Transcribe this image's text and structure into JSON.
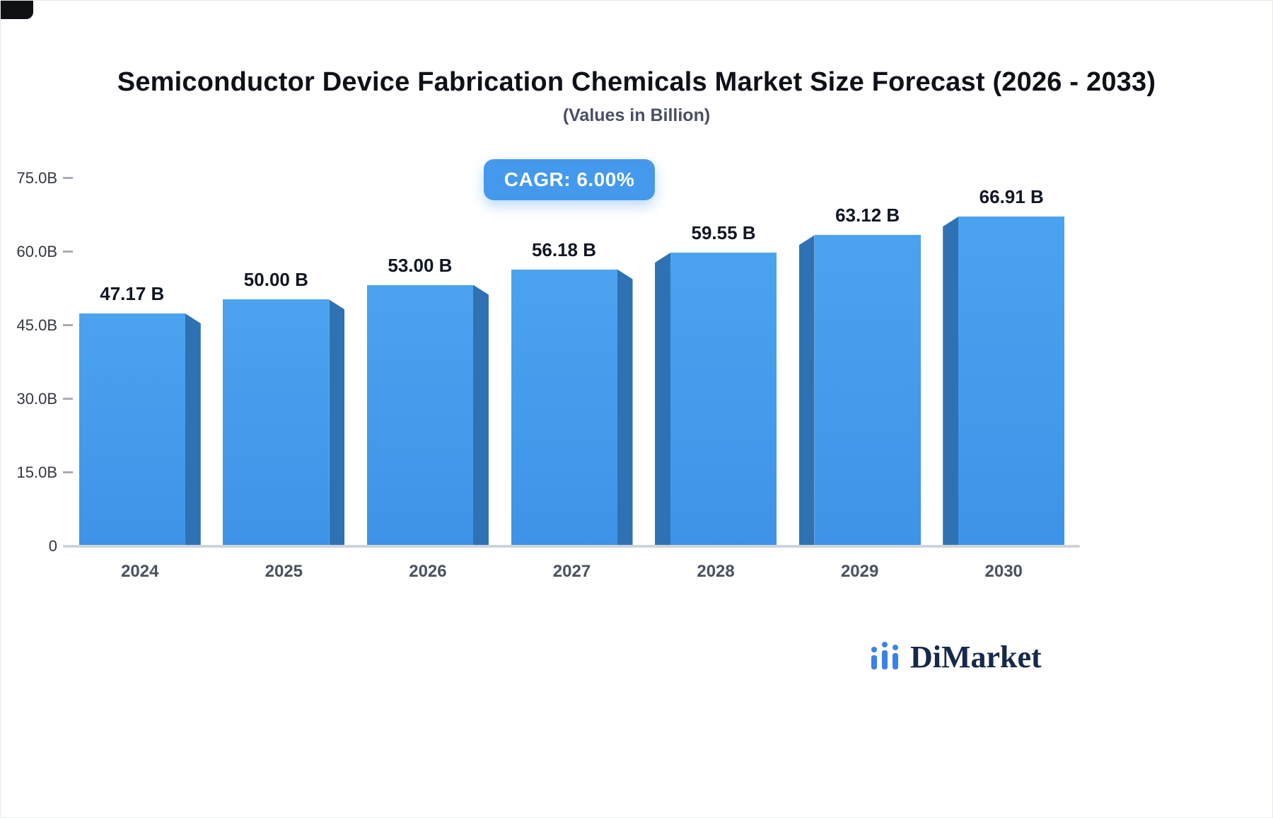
{
  "header": {
    "title": "Semiconductor Device Fabrication Chemicals Market Size Forecast (2026 - 2033)",
    "subtitle": "(Values in Billion)"
  },
  "badge": {
    "label": "CAGR: 6.00%"
  },
  "chart_data": {
    "type": "bar",
    "title": "Semiconductor Device Fabrication Chemicals Market Size Forecast (2026 - 2033)",
    "subtitle": "(Values in Billion)",
    "categories": [
      "2024",
      "2025",
      "2026",
      "2027",
      "2028",
      "2029",
      "2030"
    ],
    "values": [
      47.17,
      50.0,
      53.0,
      56.18,
      59.55,
      63.12,
      66.91
    ],
    "labels": [
      "47.17 B",
      "50.00 B",
      "53.00 B",
      "56.18 B",
      "59.55 B",
      "63.12 B",
      "66.91 B"
    ],
    "xlabel": "",
    "ylabel": "",
    "ylim": [
      0,
      75
    ],
    "grid": false,
    "legend": "none",
    "yticks": [
      {
        "value": 0,
        "label": "0"
      },
      {
        "value": 15,
        "label": "15.0B"
      },
      {
        "value": 30,
        "label": "30.0B"
      },
      {
        "value": 45,
        "label": "45.0B"
      },
      {
        "value": 60,
        "label": "60.0B"
      },
      {
        "value": 75,
        "label": "75.0B"
      }
    ]
  },
  "colors": {
    "bar_main": "#4BA3EF",
    "bar_main_bottom": "#3E93E8",
    "bar_side": "#2E72B4",
    "badge_bg": "#4499EC",
    "title_text": "#0E1117",
    "brand_text": "#16294A",
    "logo_blue": "#3B82E8"
  },
  "footer": {
    "brand": "DiMarket"
  }
}
